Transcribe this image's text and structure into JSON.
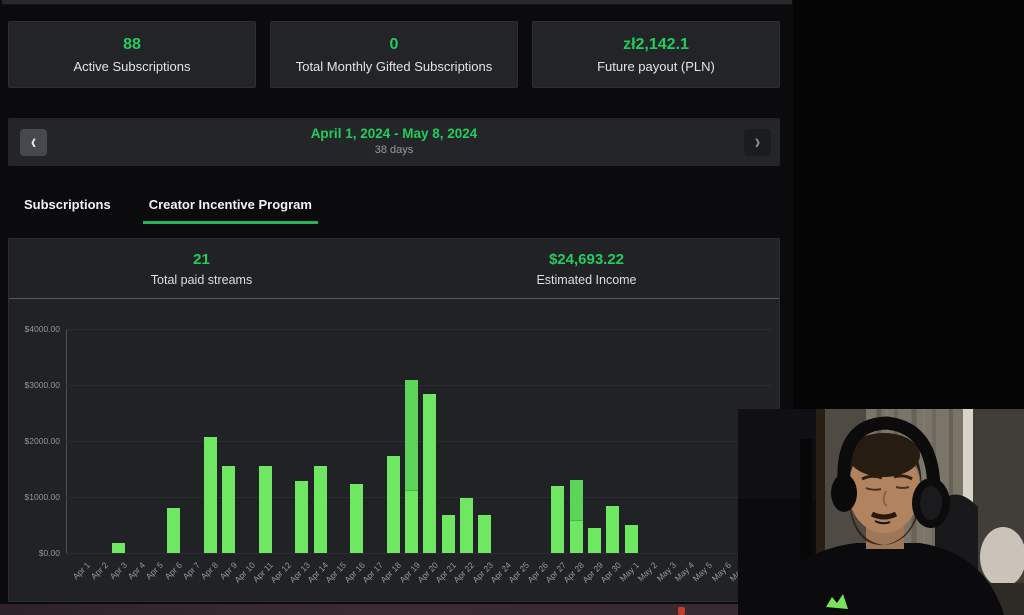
{
  "colors": {
    "accent_green": "#23cd5d",
    "bar_green": "#6fe763",
    "bar_green_secondary": "#5cd45a",
    "tab_underline": "#25b457",
    "panel_bg": "#202226",
    "card_bg": "#222428"
  },
  "icons": {
    "chevron_left": "‹",
    "chevron_right": "›"
  },
  "summary_cards": [
    {
      "value": "88",
      "label": "Active Subscriptions"
    },
    {
      "value": "0",
      "label": "Total Monthly Gifted Subscriptions"
    },
    {
      "value": "zł2,142.1",
      "label": "Future payout (PLN)"
    }
  ],
  "date_nav": {
    "range": "April 1, 2024 - May 8, 2024",
    "duration": "38 days"
  },
  "tabs": [
    {
      "label": "Subscriptions",
      "active": false
    },
    {
      "label": "Creator Incentive Program",
      "active": true
    }
  ],
  "program_stats": [
    {
      "value": "21",
      "label": "Total paid streams"
    },
    {
      "value": "$24,693.22",
      "label": "Estimated Income"
    }
  ],
  "chart_data": {
    "type": "bar",
    "title": "",
    "xlabel": "",
    "ylabel": "",
    "ylim": [
      0,
      4000
    ],
    "grid": true,
    "legend": "none",
    "y_ticks": [
      "$0.00",
      "$1000.00",
      "$2000.00",
      "$3000.00",
      "$4000.00"
    ],
    "categories": [
      "Apr 1",
      "Apr 2",
      "Apr 3",
      "Apr 4",
      "Apr 5",
      "Apr 6",
      "Apr 7",
      "Apr 8",
      "Apr 9",
      "Apr 10",
      "Apr 11",
      "Apr 12",
      "Apr 13",
      "Apr 14",
      "Apr 15",
      "Apr 16",
      "Apr 17",
      "Apr 18",
      "Apr 19",
      "Apr 20",
      "Apr 21",
      "Apr 22",
      "Apr 23",
      "Apr 24",
      "Apr 25",
      "Apr 26",
      "Apr 27",
      "Apr 28",
      "Apr 29",
      "Apr 30",
      "May 1",
      "May 2",
      "May 3",
      "May 4",
      "May 5",
      "May 6",
      "May 7"
    ],
    "values": [
      0,
      0,
      185,
      0,
      0,
      810,
      0,
      2070,
      1560,
      0,
      1550,
      0,
      1290,
      1560,
      0,
      1230,
      0,
      1740,
      3085,
      2835,
      680,
      990,
      680,
      0,
      0,
      0,
      1200,
      1310,
      450,
      840,
      500,
      0,
      0,
      0,
      0,
      0,
      0
    ],
    "bars": [
      {
        "date": "Apr 3",
        "total": 185
      },
      {
        "date": "Apr 6",
        "total": 810
      },
      {
        "date": "Apr 8",
        "total": 2070
      },
      {
        "date": "Apr 9",
        "total": 1560
      },
      {
        "date": "Apr 11",
        "total": 1550
      },
      {
        "date": "Apr 13",
        "total": 1290
      },
      {
        "date": "Apr 14",
        "total": 1560
      },
      {
        "date": "Apr 16",
        "total": 1230
      },
      {
        "date": "Apr 18",
        "total": 1740
      },
      {
        "date": "Apr 19",
        "total": 3085,
        "segments": [
          1110,
          1975
        ]
      },
      {
        "date": "Apr 20",
        "total": 2835
      },
      {
        "date": "Apr 21",
        "total": 680
      },
      {
        "date": "Apr 22",
        "total": 990
      },
      {
        "date": "Apr 23",
        "total": 680
      },
      {
        "date": "Apr 27",
        "total": 1200
      },
      {
        "date": "Apr 28",
        "total": 1310,
        "segments": [
          575,
          735
        ]
      },
      {
        "date": "Apr 29",
        "total": 450
      },
      {
        "date": "Apr 30",
        "total": 840
      },
      {
        "date": "May 1",
        "total": 500
      }
    ]
  }
}
